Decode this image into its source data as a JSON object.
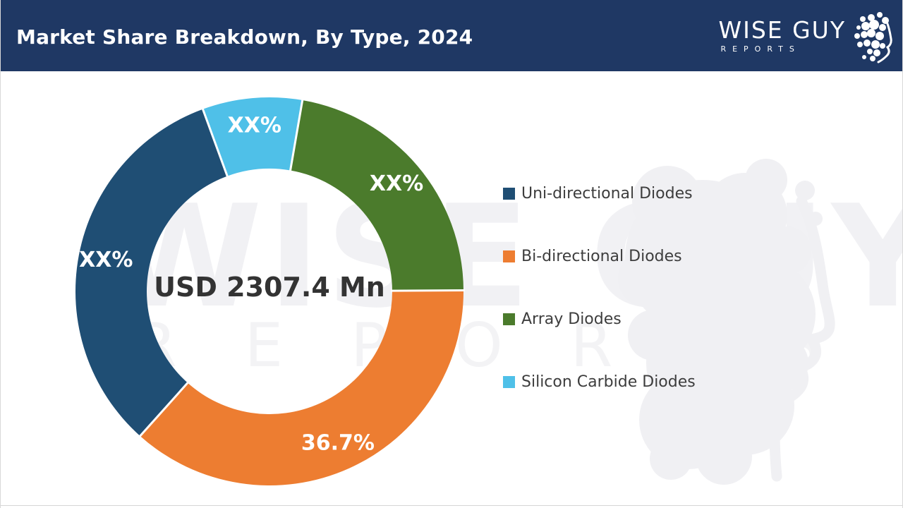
{
  "header": {
    "title": "Market Share Breakdown, By Type, 2024",
    "logo": {
      "brand": "WISE GUY",
      "brand_sub": "REPORTS"
    }
  },
  "watermark": {
    "line1": "WISE GUY",
    "line2": "REPORTS"
  },
  "chart_data": {
    "type": "pie",
    "subtype": "donut",
    "title": "Market Share Breakdown, By Type, 2024",
    "center_label": "USD 2307.4 Mn",
    "legend_position": "right",
    "start_angle_deg": -20.1,
    "clockwise": true,
    "draw_order": [
      3,
      2,
      1,
      0
    ],
    "slices": [
      {
        "name": "Uni-directional Diodes",
        "value_pct": 32.8,
        "display": "XX%",
        "color": "#1f4e74"
      },
      {
        "name": "Bi-directional Diodes",
        "value_pct": 36.7,
        "display": "36.7%",
        "color": "#ed7d31"
      },
      {
        "name": "Array Diodes",
        "value_pct": 22.2,
        "display": "XX%",
        "color": "#4b7b2c"
      },
      {
        "name": "Silicon Carbide Diodes",
        "value_pct": 8.3,
        "display": "XX%",
        "color": "#4fc0e8"
      }
    ]
  }
}
